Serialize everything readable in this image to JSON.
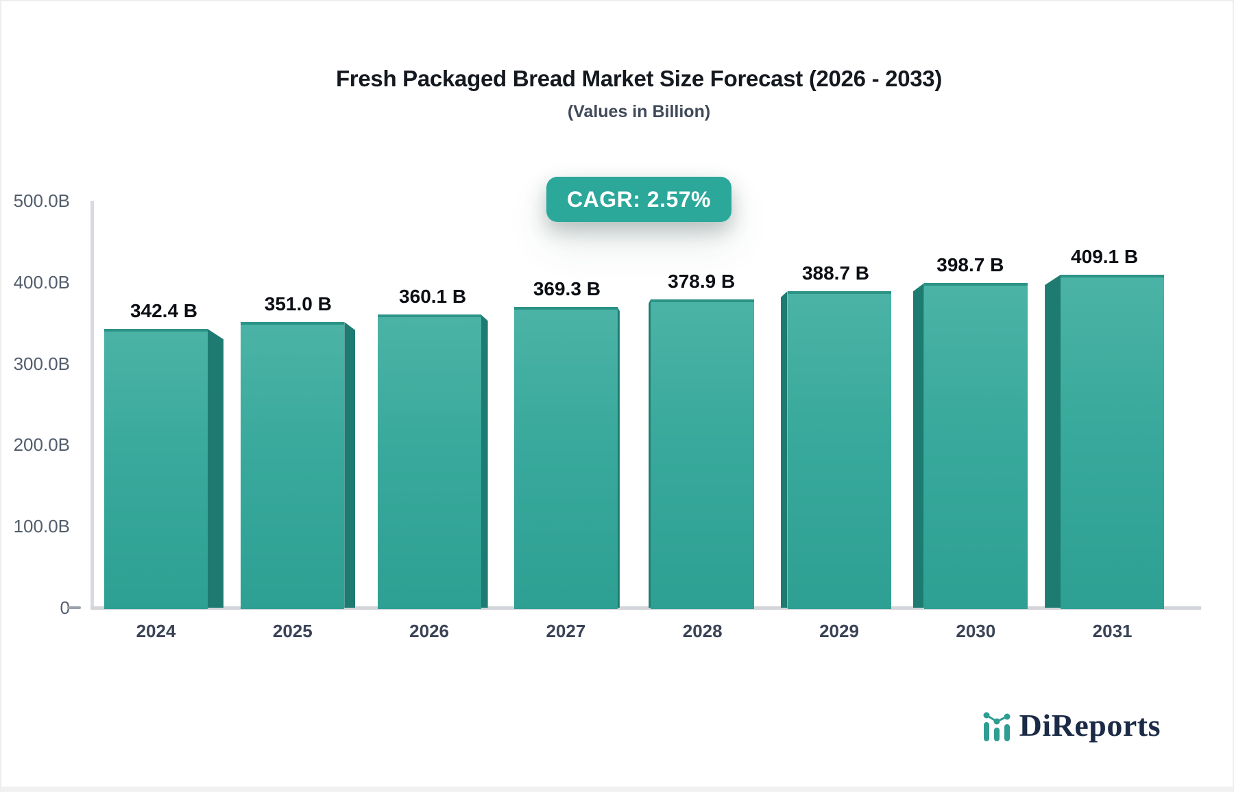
{
  "header": {
    "title": "Fresh Packaged Bread Market Size Forecast (2026 - 2033)",
    "subtitle": "(Values in Billion)",
    "cagr_badge": "CAGR: 2.57%"
  },
  "chart_data": {
    "type": "bar",
    "title": "Fresh Packaged Bread Market Size Forecast (2026 - 2033)",
    "subtitle": "(Values in Billion)",
    "cagr": "2.57%",
    "categories": [
      "2024",
      "2025",
      "2026",
      "2027",
      "2028",
      "2029",
      "2030",
      "2031"
    ],
    "values": [
      342.4,
      351.0,
      360.1,
      369.3,
      378.9,
      388.7,
      398.7,
      409.1
    ],
    "value_labels": [
      "342.4 B",
      "351.0 B",
      "360.1 B",
      "369.3 B",
      "378.9 B",
      "388.7 B",
      "398.7 B",
      "409.1 B"
    ],
    "xlabel": "",
    "ylabel": "",
    "ylim": [
      0,
      500
    ],
    "yticks": [
      {
        "value": 500,
        "label": "500.0B"
      },
      {
        "value": 400,
        "label": "400.0B"
      },
      {
        "value": 300,
        "label": "300.0B"
      },
      {
        "value": 200,
        "label": "200.0B"
      },
      {
        "value": 100,
        "label": "100.0B"
      },
      {
        "value": 0,
        "label": "0"
      }
    ],
    "grid": false,
    "legend": false,
    "colors": {
      "bar_face": "#38A99C",
      "bar_face_top": "#4BB3A6",
      "bar_face_bottom": "#2EA093",
      "bar_top_edge": "#2C9387",
      "bar_side_3d": "#1E7B71",
      "axis_line": "#D7DADE",
      "tick_label": "#525D6C",
      "x_label": "#3A4356",
      "value_label": "#0B0E13",
      "badge_bg": "#2BA89A",
      "logo_navy": "#1B2A45",
      "logo_teal": "#2E9D92"
    }
  },
  "footer": {
    "brand": "DiReports"
  }
}
